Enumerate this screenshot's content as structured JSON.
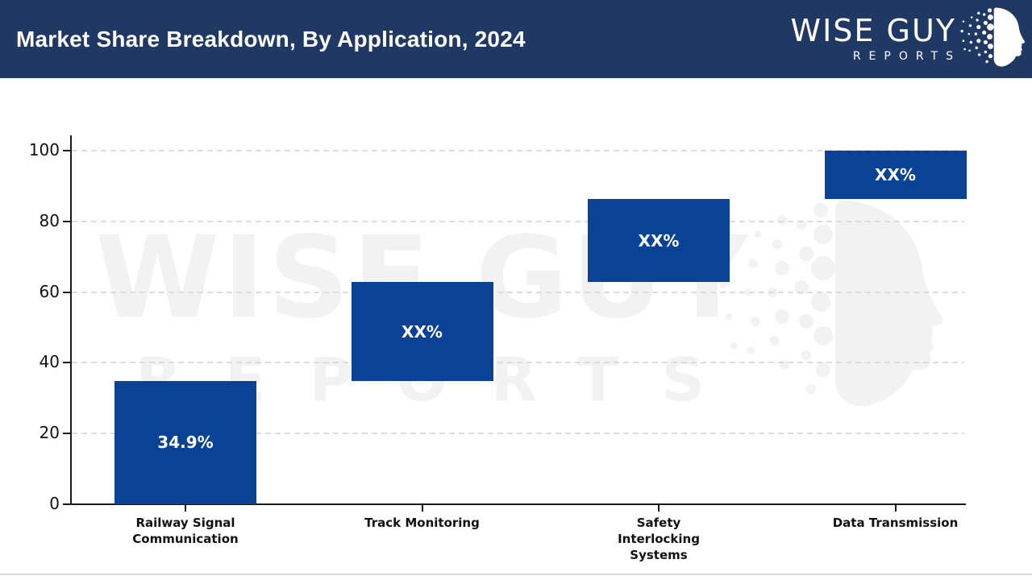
{
  "header": {
    "title": "Market Share Breakdown, By Application, 2024",
    "bg_color": "#203864",
    "logo": {
      "wordmark": "WISE GUY",
      "subtext": "REPORTS"
    }
  },
  "watermark": {
    "wordmark": "WISE GUY",
    "subtext": "REPORTS"
  },
  "chart_data": {
    "type": "bar",
    "subtype": "waterfall",
    "title": "Market Share Breakdown, By Application, 2024",
    "categories": [
      "Railway Signal Communication",
      "Track Monitoring",
      "Safety Interlocking Systems",
      "Data Transmission"
    ],
    "categories_lines": [
      [
        "Railway Signal",
        "Communication"
      ],
      [
        "Track Monitoring"
      ],
      [
        "Safety",
        "Interlocking",
        "Systems"
      ],
      [
        "Data Transmission"
      ]
    ],
    "segments": [
      {
        "category": "Railway Signal Communication",
        "start": 0,
        "end": 34.9,
        "display": "34.9%"
      },
      {
        "category": "Track Monitoring",
        "start": 34.9,
        "end": 62.8,
        "display": "XX%"
      },
      {
        "category": "Safety Interlocking Systems",
        "start": 62.8,
        "end": 86.3,
        "display": "XX%"
      },
      {
        "category": "Data Transmission",
        "start": 86.3,
        "end": 100,
        "display": "XX%"
      }
    ],
    "xlabel": "",
    "ylabel": "",
    "yticks": [
      0,
      20,
      40,
      60,
      80,
      100
    ],
    "ylim": [
      0,
      105
    ],
    "bar_color": "#0a4296",
    "bar_label_color": "#ffffff",
    "grid": {
      "axis": "y",
      "style": "dashed",
      "color": "#dcdcdc"
    },
    "legend": null
  }
}
